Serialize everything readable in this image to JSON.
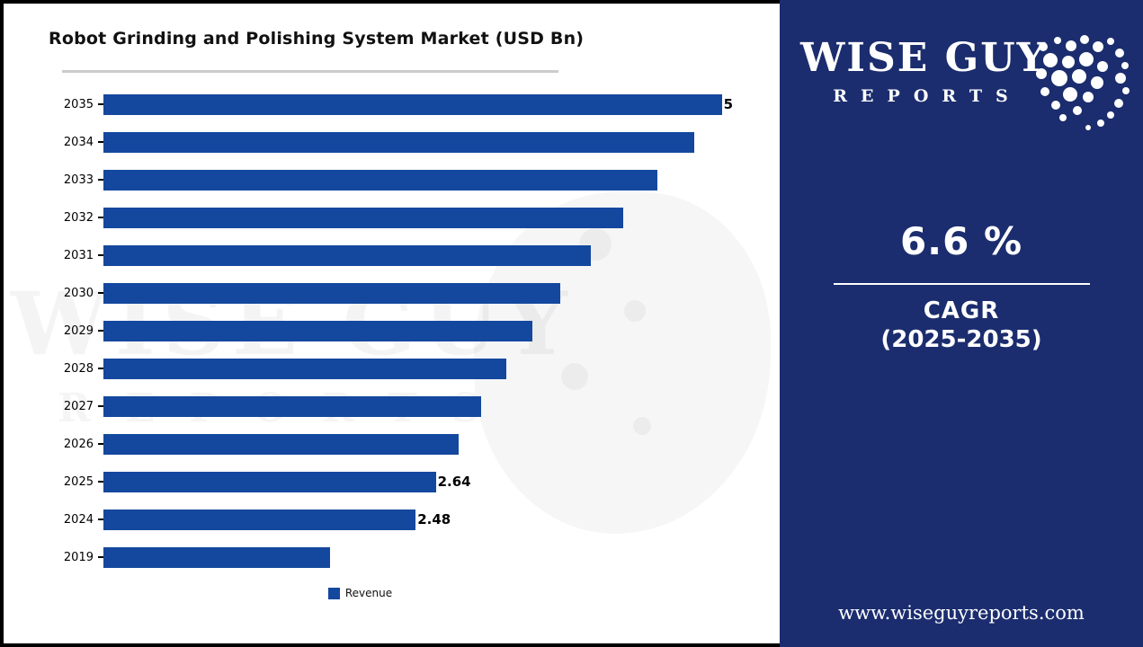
{
  "chart_data": {
    "type": "bar",
    "orientation": "horizontal",
    "title": "Robot Grinding and Polishing System Market (USD Bn)",
    "categories": [
      "2035",
      "2034",
      "2033",
      "2032",
      "2031",
      "2030",
      "2029",
      "2028",
      "2027",
      "2026",
      "2025",
      "2024",
      "2019"
    ],
    "values": [
      5,
      4.69,
      4.4,
      4.13,
      3.87,
      3.63,
      3.41,
      3.2,
      3.0,
      2.82,
      2.64,
      2.48,
      1.8
    ],
    "data_labels": {
      "2035": "5",
      "2025": "2.64",
      "2024": "2.48"
    },
    "xlim": [
      0,
      5
    ],
    "legend": [
      "Revenue"
    ],
    "legend_position": "bottom",
    "grid": false
  },
  "chart": {
    "title": "Robot Grinding and Polishing System Market (USD Bn)",
    "legend_label": "Revenue"
  },
  "watermark": {
    "line1": "WISE GUY",
    "line2": "REPORTS"
  },
  "panel": {
    "logo_line1": "WISE GUY",
    "logo_line2": "REPORTS",
    "cagr_value": "6.6 %",
    "cagr_label": "CAGR",
    "cagr_period": "(2025-2035)",
    "website": "www.wiseguyreports.com"
  },
  "colors": {
    "bar": "#14489e",
    "panel_bg": "#1b2d6e",
    "value_label": "#000000",
    "rule_gray": "#cccccc"
  }
}
